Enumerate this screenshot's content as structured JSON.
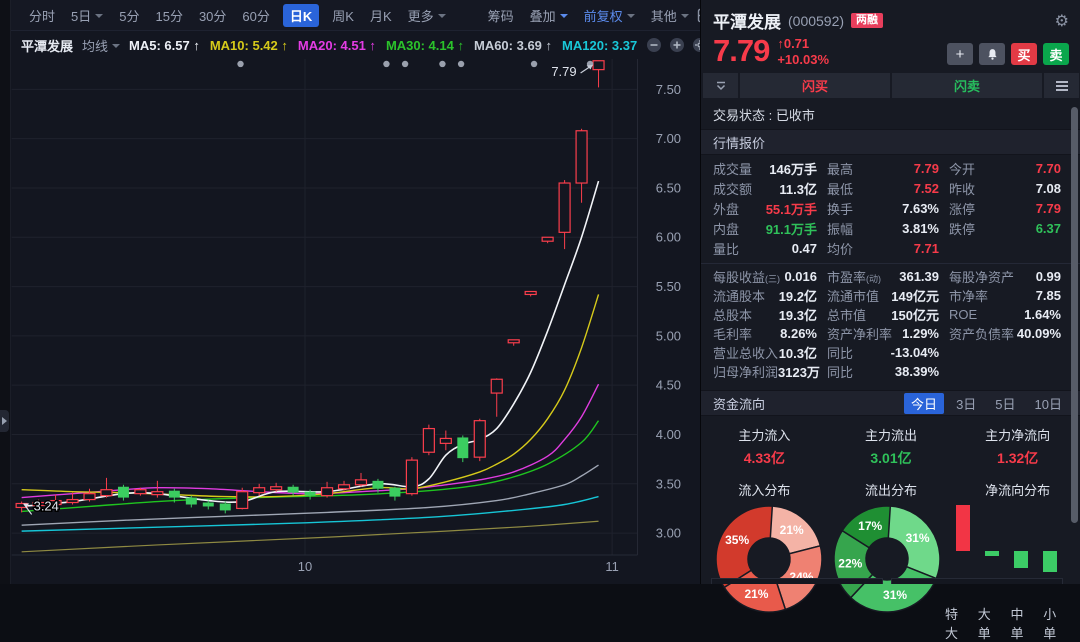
{
  "toolbar": {
    "periods": [
      {
        "label": "分时"
      },
      {
        "label": "5日",
        "caret": true
      },
      {
        "label": "5分"
      },
      {
        "label": "15分"
      },
      {
        "label": "30分"
      },
      {
        "label": "60分"
      },
      {
        "label": "日K",
        "active": true
      },
      {
        "label": "周K"
      },
      {
        "label": "月K"
      },
      {
        "label": "更多",
        "caret": true
      }
    ],
    "tools": [
      {
        "label": "筹码"
      },
      {
        "label": "叠加",
        "caret": true,
        "caret_blue": true
      },
      {
        "label": "前复权",
        "caret": true,
        "accent": true
      },
      {
        "label": "其他",
        "caret": true
      }
    ],
    "icons": [
      "grid-icon",
      "brush-icon",
      "fullscreen-icon"
    ]
  },
  "legend": {
    "stock_name": "平潭发展",
    "ma_selector": "均线",
    "mas": [
      {
        "label": "MA5:",
        "value": "6.57",
        "arrow": "↑",
        "color": "#eef1f7"
      },
      {
        "label": "MA10:",
        "value": "5.42",
        "arrow": "↑",
        "color": "#d6ca1a"
      },
      {
        "label": "MA20:",
        "value": "4.51",
        "arrow": "↑",
        "color": "#e43ce4"
      },
      {
        "label": "MA30:",
        "value": "4.14",
        "arrow": "↑",
        "color": "#2bc32b"
      },
      {
        "label": "MA60:",
        "value": "3.69",
        "arrow": "↑",
        "color": "#c6ccd6"
      },
      {
        "label": "MA120:",
        "value": "3.37",
        "arrow": "",
        "color": "#19c8d8"
      }
    ],
    "icons": [
      "zoom-out-icon",
      "zoom-in-icon",
      "settings-icon",
      "close-icon"
    ]
  },
  "panel": {
    "stock_name": "平潭发展",
    "stock_code": "(000592)",
    "badge": "两融",
    "price": "7.79",
    "change_arrow": "↑",
    "change": "0.71",
    "change_pct": "+10.03%",
    "actions": {
      "add": "+",
      "buy": "买",
      "sell": "卖"
    },
    "quick": {
      "buy": "闪买",
      "sell": "闪卖"
    },
    "status_label": "交易状态 : 已收市",
    "quote": {
      "title": "行情报价",
      "cells": [
        {
          "l": "成交量",
          "v": "146万手",
          "c": "w"
        },
        {
          "l": "最高",
          "v": "7.79",
          "c": "r"
        },
        {
          "l": "今开",
          "v": "7.70",
          "c": "r"
        },
        {
          "l": "成交额",
          "v": "11.3亿",
          "c": "w"
        },
        {
          "l": "最低",
          "v": "7.52",
          "c": "r"
        },
        {
          "l": "昨收",
          "v": "7.08",
          "c": "w"
        },
        {
          "l": "外盘",
          "v": "55.1万手",
          "c": "r"
        },
        {
          "l": "换手",
          "v": "7.63%",
          "c": "w"
        },
        {
          "l": "涨停",
          "v": "7.79",
          "c": "r"
        },
        {
          "l": "内盘",
          "v": "91.1万手",
          "c": "g"
        },
        {
          "l": "振幅",
          "v": "3.81%",
          "c": "w"
        },
        {
          "l": "跌停",
          "v": "6.37",
          "c": "g"
        },
        {
          "l": "量比",
          "v": "0.47",
          "c": "w"
        },
        {
          "l": "均价",
          "v": "7.71",
          "c": "r"
        },
        {
          "l": "",
          "v": "",
          "c": "w"
        }
      ]
    },
    "fundamentals": {
      "cells": [
        {
          "l": "每股收益",
          "sub": "(三)",
          "v": "0.016"
        },
        {
          "l": "市盈率",
          "sub": "(动)",
          "v": "361.39"
        },
        {
          "l": "每股净资产",
          "v": "0.99"
        },
        {
          "l": "流通股本",
          "v": "19.2亿"
        },
        {
          "l": "流通市值",
          "v": "149亿元"
        },
        {
          "l": "市净率",
          "v": "7.85"
        },
        {
          "l": "总股本",
          "v": "19.3亿"
        },
        {
          "l": "总市值",
          "v": "150亿元"
        },
        {
          "l": "ROE",
          "v": "1.64%"
        },
        {
          "l": "毛利率",
          "v": "8.26%"
        },
        {
          "l": "资产净利率",
          "v": "1.29%"
        },
        {
          "l": "资产负债率",
          "v": "40.09%"
        },
        {
          "l": "营业总收入",
          "v": "10.3亿"
        },
        {
          "l": "同比",
          "v": "-13.04%"
        },
        {
          "l": "",
          "v": ""
        },
        {
          "l": "归母净利润",
          "v": "3123万"
        },
        {
          "l": "同比",
          "v": "38.39%"
        },
        {
          "l": "",
          "v": ""
        }
      ]
    },
    "flow": {
      "title": "资金流向",
      "tabs": [
        {
          "label": "今日",
          "active": true
        },
        {
          "label": "3日"
        },
        {
          "label": "5日"
        },
        {
          "label": "10日"
        }
      ],
      "stats": [
        {
          "label": "主力流入",
          "value": "4.33亿",
          "c": "r"
        },
        {
          "label": "主力流出",
          "value": "3.01亿",
          "c": "g"
        },
        {
          "label": "主力净流向",
          "value": "1.32亿",
          "c": "r"
        }
      ],
      "dist_labels": [
        "流入分布",
        "流出分布",
        "净流向分布"
      ],
      "order_labels": [
        "特大",
        "大单",
        "中单",
        "小单"
      ]
    }
  },
  "chart_data": [
    {
      "type": "candlestick",
      "title": "平潭发展 日K",
      "note": "red = up (hollow), green = down (solid); prices in CNY",
      "candle_format": "[open, close, high, low]",
      "candles": [
        [
          3.26,
          3.3,
          3.32,
          3.21
        ],
        [
          3.28,
          3.31,
          3.34,
          3.26
        ],
        [
          3.29,
          3.33,
          3.39,
          3.27
        ],
        [
          3.31,
          3.34,
          3.41,
          3.29
        ],
        [
          3.34,
          3.4,
          3.45,
          3.32
        ],
        [
          3.38,
          3.44,
          3.56,
          3.36
        ],
        [
          3.47,
          3.36,
          3.49,
          3.33
        ],
        [
          3.4,
          3.44,
          3.46,
          3.38
        ],
        [
          3.39,
          3.42,
          3.53,
          3.36
        ],
        [
          3.43,
          3.36,
          3.45,
          3.31
        ],
        [
          3.36,
          3.29,
          3.38,
          3.26
        ],
        [
          3.31,
          3.27,
          3.33,
          3.24
        ],
        [
          3.3,
          3.23,
          3.32,
          3.2
        ],
        [
          3.25,
          3.42,
          3.46,
          3.24
        ],
        [
          3.41,
          3.46,
          3.5,
          3.38
        ],
        [
          3.44,
          3.47,
          3.51,
          3.42
        ],
        [
          3.47,
          3.41,
          3.49,
          3.38
        ],
        [
          3.42,
          3.38,
          3.44,
          3.34
        ],
        [
          3.38,
          3.46,
          3.52,
          3.36
        ],
        [
          3.45,
          3.49,
          3.53,
          3.43
        ],
        [
          3.49,
          3.54,
          3.61,
          3.47
        ],
        [
          3.53,
          3.45,
          3.55,
          3.41
        ],
        [
          3.46,
          3.37,
          3.47,
          3.33
        ],
        [
          3.4,
          3.74,
          3.77,
          3.38
        ],
        [
          3.82,
          4.06,
          4.1,
          3.79
        ],
        [
          3.91,
          3.96,
          4.04,
          3.84
        ],
        [
          3.97,
          3.76,
          3.99,
          3.72
        ],
        [
          3.77,
          4.14,
          4.16,
          3.73
        ],
        [
          4.42,
          4.56,
          4.57,
          4.18
        ],
        [
          4.93,
          4.96,
          4.96,
          4.9
        ],
        [
          5.42,
          5.45,
          5.45,
          5.4
        ],
        [
          5.96,
          6.0,
          6.0,
          5.94
        ],
        [
          6.05,
          6.55,
          6.58,
          5.88
        ],
        [
          6.55,
          7.08,
          7.1,
          6.35
        ],
        [
          7.7,
          7.79,
          7.79,
          7.52
        ]
      ],
      "y_ticks": [
        3.0,
        3.5,
        4.0,
        4.5,
        5.0,
        5.5,
        6.0,
        6.5,
        7.0,
        7.5
      ],
      "ylim": [
        2.75,
        7.85
      ],
      "x_ticks": [
        {
          "label": "10",
          "idx": 16.7
        },
        {
          "label": "11",
          "idx": 34.8
        }
      ],
      "event_dots_idx": [
        12.9,
        21.5,
        22.6,
        24.8,
        25.9,
        30.2,
        33.5
      ],
      "price_tag": "7.79",
      "start_tag": "3.24",
      "ma_series": [
        {
          "name": "MA250",
          "color": "#8f8a42",
          "width": 1.2,
          "points": [
            [
              0,
              2.81
            ],
            [
              8,
              2.88
            ],
            [
              17,
              2.95
            ],
            [
              25,
              3.02
            ],
            [
              30,
              3.07
            ],
            [
              34,
              3.12
            ]
          ]
        },
        {
          "name": "MA120",
          "color": "#16c5d6",
          "width": 1.4,
          "points": [
            [
              0,
              3.02
            ],
            [
              8,
              3.06
            ],
            [
              16,
              3.1
            ],
            [
              24,
              3.16
            ],
            [
              29,
              3.23
            ],
            [
              32,
              3.29
            ],
            [
              34,
              3.37
            ]
          ]
        },
        {
          "name": "MA60",
          "color": "#9fa6b4",
          "width": 1.4,
          "points": [
            [
              0,
              3.08
            ],
            [
              6,
              3.13
            ],
            [
              12,
              3.17
            ],
            [
              18,
              3.21
            ],
            [
              24,
              3.26
            ],
            [
              28,
              3.33
            ],
            [
              30,
              3.4
            ],
            [
              32,
              3.49
            ],
            [
              33,
              3.58
            ],
            [
              34,
              3.69
            ]
          ]
        },
        {
          "name": "MA30",
          "color": "#1fc41f",
          "width": 1.4,
          "points": [
            [
              0,
              3.22
            ],
            [
              4,
              3.27
            ],
            [
              8,
              3.32
            ],
            [
              12,
              3.35
            ],
            [
              16,
              3.37
            ],
            [
              20,
              3.39
            ],
            [
              24,
              3.43
            ],
            [
              27,
              3.49
            ],
            [
              29,
              3.57
            ],
            [
              31,
              3.7
            ],
            [
              33,
              3.92
            ],
            [
              34,
              4.14
            ]
          ]
        },
        {
          "name": "MA20",
          "color": "#e03ce0",
          "width": 1.4,
          "points": [
            [
              0,
              3.36
            ],
            [
              3,
              3.4
            ],
            [
              6,
              3.44
            ],
            [
              8,
              3.46
            ],
            [
              11,
              3.45
            ],
            [
              14,
              3.42
            ],
            [
              17,
              3.4
            ],
            [
              20,
              3.42
            ],
            [
              23,
              3.45
            ],
            [
              25,
              3.49
            ],
            [
              27,
              3.54
            ],
            [
              29,
              3.62
            ],
            [
              31,
              3.78
            ],
            [
              32,
              3.95
            ],
            [
              33,
              4.18
            ],
            [
              34,
              4.51
            ]
          ]
        },
        {
          "name": "MA10",
          "color": "#d6ca1a",
          "width": 1.4,
          "points": [
            [
              0,
              3.44
            ],
            [
              3,
              3.42
            ],
            [
              6,
              3.41
            ],
            [
              9,
              3.39
            ],
            [
              12,
              3.37
            ],
            [
              15,
              3.37
            ],
            [
              18,
              3.4
            ],
            [
              21,
              3.46
            ],
            [
              23,
              3.45
            ],
            [
              25,
              3.52
            ],
            [
              27,
              3.62
            ],
            [
              28,
              3.7
            ],
            [
              29,
              3.8
            ],
            [
              30,
              3.95
            ],
            [
              31,
              4.16
            ],
            [
              32,
              4.45
            ],
            [
              33,
              4.88
            ],
            [
              34,
              5.42
            ]
          ]
        },
        {
          "name": "MA5",
          "color": "#f2f4f8",
          "width": 1.6,
          "points": [
            [
              0,
              3.27
            ],
            [
              3,
              3.32
            ],
            [
              6,
              3.4
            ],
            [
              8,
              3.4
            ],
            [
              11,
              3.33
            ],
            [
              13,
              3.32
            ],
            [
              15,
              3.42
            ],
            [
              18,
              3.42
            ],
            [
              21,
              3.5
            ],
            [
              23,
              3.47
            ],
            [
              24,
              3.55
            ],
            [
              25,
              3.79
            ],
            [
              26,
              3.9
            ],
            [
              27,
              3.95
            ],
            [
              28,
              4.06
            ],
            [
              29,
              4.31
            ],
            [
              30,
              4.63
            ],
            [
              31,
              5.05
            ],
            [
              32,
              5.52
            ],
            [
              33,
              6.0
            ],
            [
              34,
              6.57
            ]
          ]
        }
      ],
      "colors": {
        "up": "#fb3e4c",
        "down": "#3bcd60",
        "grid": "#1f222d",
        "axis_text": "#99a1b3"
      }
    },
    {
      "type": "pie",
      "title": "流入分布",
      "labels": [
        "21%",
        "24%",
        "21%",
        "35%"
      ],
      "values": [
        21,
        24,
        21,
        35
      ],
      "colors": [
        "#f4b3a6",
        "#ef8172",
        "#e85a4b",
        "#d23a2c"
      ]
    },
    {
      "type": "pie",
      "title": "流出分布",
      "labels": [
        "31%",
        "31%",
        "22%",
        "17%"
      ],
      "values": [
        31,
        31,
        22,
        17
      ],
      "colors": [
        "#6fd98a",
        "#46c167",
        "#36a54d",
        "#1f8f33"
      ]
    },
    {
      "type": "bar",
      "title": "净流向分布",
      "categories": [
        "特大",
        "大单",
        "中单",
        "小单"
      ],
      "values": [
        46,
        -5,
        -17,
        -21
      ],
      "note": "relative bar magnitudes; positive=inflow(red), negative=outflow(green)",
      "pos_color": "#f23545",
      "neg_color": "#3ccc66"
    }
  ]
}
